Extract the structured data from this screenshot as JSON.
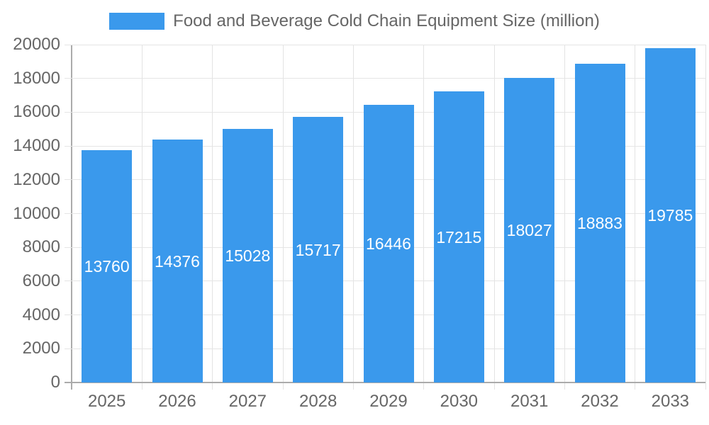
{
  "legend": {
    "label": "Food and Beverage Cold Chain Equipment Size (million)"
  },
  "chart_data": {
    "type": "bar",
    "title": "Food and Beverage Cold Chain Equipment Size (million)",
    "categories": [
      "2025",
      "2026",
      "2027",
      "2028",
      "2029",
      "2030",
      "2031",
      "2032",
      "2033"
    ],
    "series": [
      {
        "name": "Food and Beverage Cold Chain Equipment Size (million)",
        "values": [
          13760,
          14376,
          15028,
          15717,
          16446,
          17215,
          18027,
          18883,
          19785
        ]
      }
    ],
    "xlabel": "",
    "ylabel": "",
    "ylim": [
      0,
      20000
    ],
    "yticks": [
      0,
      2000,
      4000,
      6000,
      8000,
      10000,
      12000,
      14000,
      16000,
      18000,
      20000
    ],
    "grid": true,
    "legend_position": "top-center",
    "bar_label_position": "inside-middle",
    "colors": {
      "bar": "#3a99ec",
      "bar_label": "#ffffff",
      "axis_text": "#666666",
      "grid_line": "#e5e5e5",
      "zero_line": "#ababab",
      "background": "#ffffff"
    }
  }
}
